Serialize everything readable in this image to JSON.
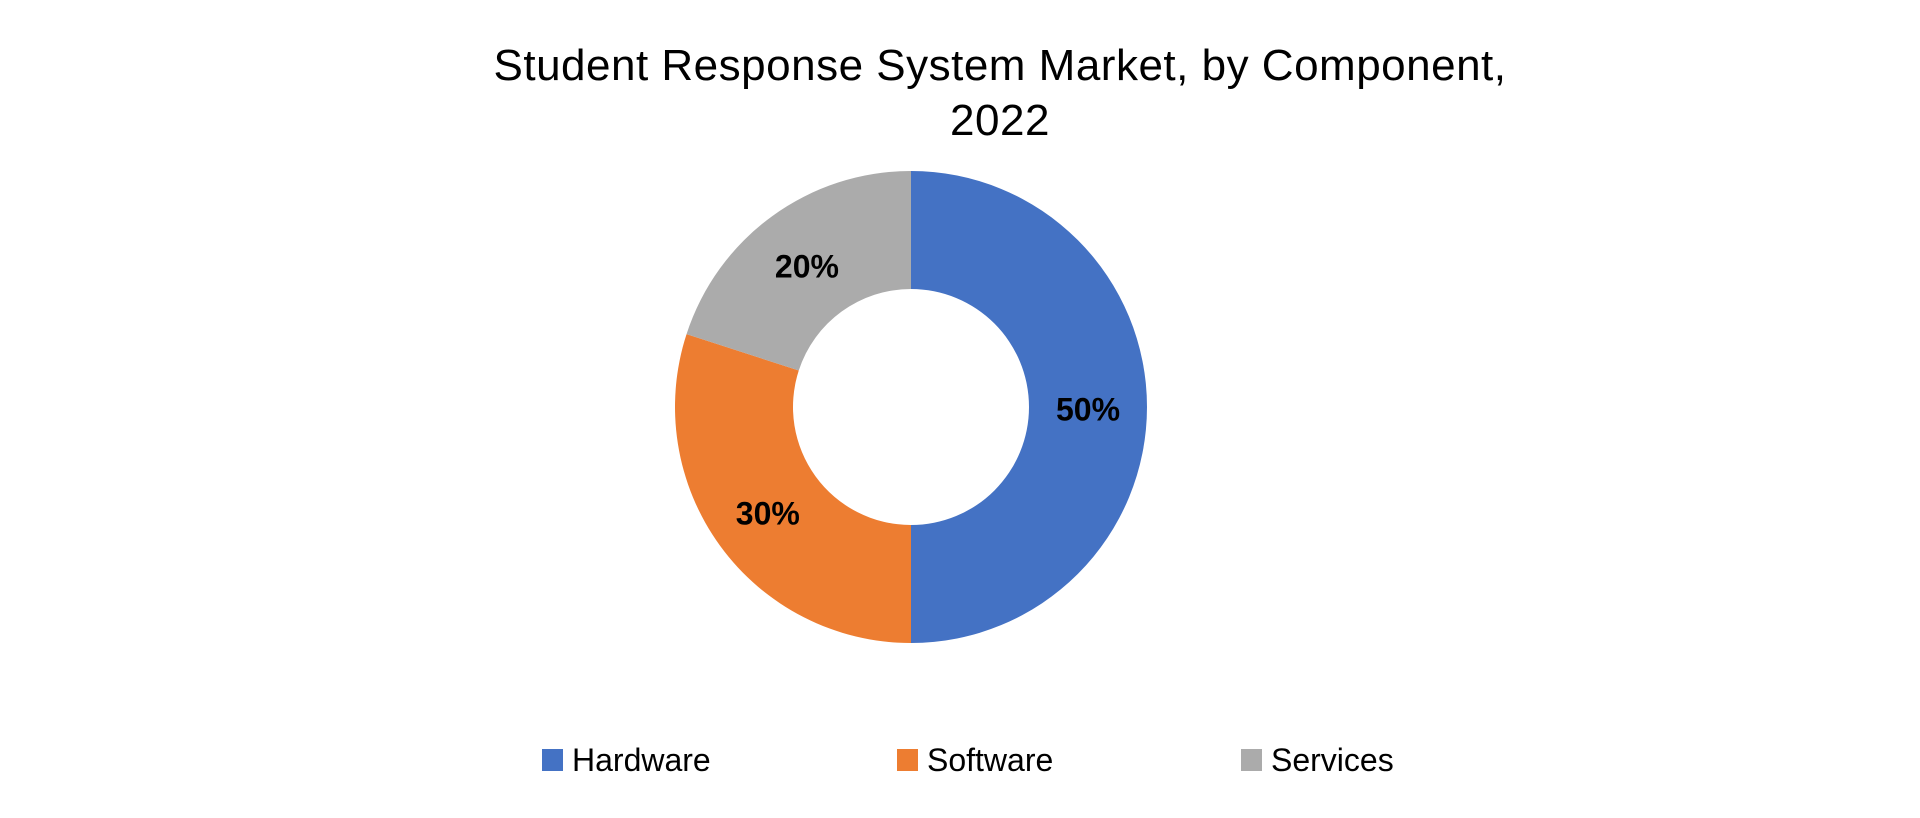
{
  "title": {
    "lines": [
      "Student Response System Market, by Component,",
      "2022"
    ]
  },
  "chart_data": {
    "type": "pie",
    "subtype": "donut",
    "title": "Student Response System Market, by Component, 2022",
    "categories": [
      "Hardware",
      "Software",
      "Services"
    ],
    "values": [
      50,
      30,
      20
    ],
    "value_labels": [
      "50%",
      "30%",
      "20%"
    ],
    "colors": [
      "#4472C4",
      "#ED7D31",
      "#ABABAB"
    ],
    "start_angle_deg": 0,
    "direction": "clockwise",
    "hole_ratio": 0.5,
    "legend_position": "bottom",
    "label_color": "#000000",
    "background_color": "#FFFFFF"
  }
}
